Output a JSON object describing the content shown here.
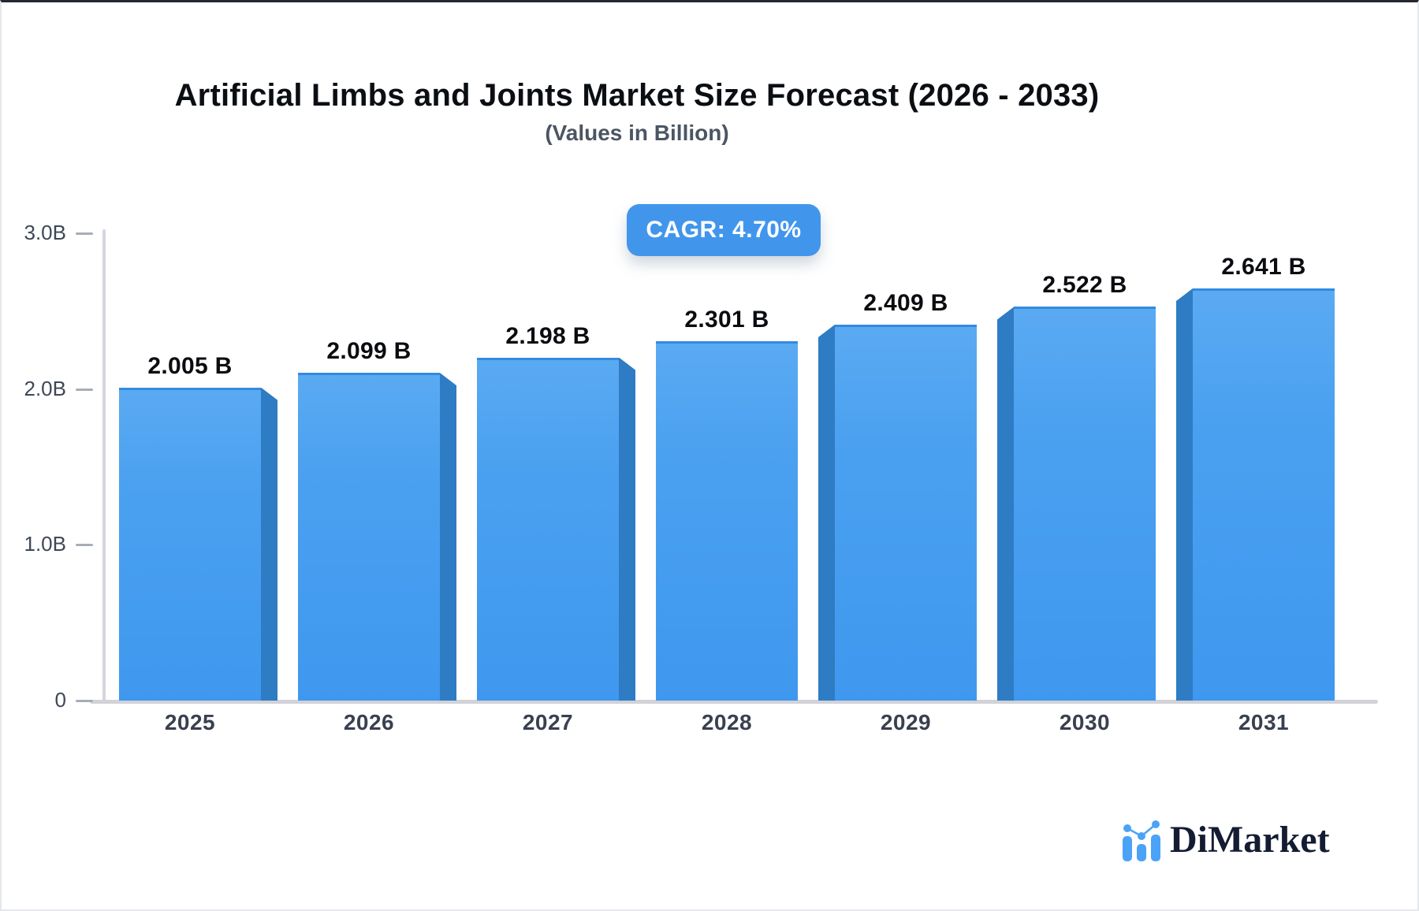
{
  "header": {
    "title": "Artificial Limbs and Joints Market Size Forecast (2026 - 2033)",
    "subtitle": "(Values in Billion)"
  },
  "badge": {
    "label": "CAGR: 4.70%",
    "background": "#4196ec",
    "text_color": "#ffffff"
  },
  "chart_data": {
    "type": "bar",
    "title": "Artificial Limbs and Joints Market Size Forecast (2026 - 2033)",
    "subtitle": "(Values in Billion)",
    "cagr": "CAGR: 4.70%",
    "categories": [
      "2025",
      "2026",
      "2027",
      "2028",
      "2029",
      "2030",
      "2031"
    ],
    "values": [
      2.005,
      2.099,
      2.198,
      2.301,
      2.409,
      2.522,
      2.641
    ],
    "value_labels": [
      "2.005 B",
      "2.099 B",
      "2.198 B",
      "2.301 B",
      "2.409 B",
      "2.522 B",
      "2.641 B"
    ],
    "unit": "Billion",
    "xlabel": "",
    "ylabel": "",
    "ylim": [
      0,
      3.0
    ],
    "yticks": [
      {
        "label": "3.0B",
        "value": 3.0
      },
      {
        "label": "2.0B",
        "value": 2.0
      },
      {
        "label": "1.0B",
        "value": 1.0
      },
      {
        "label": "0",
        "value": 0
      }
    ],
    "grid": false,
    "legend": false,
    "bar_color_top": "#5aaaf2",
    "bar_color_bottom": "#3f98ef",
    "bar_edge_color": "#338ae2",
    "bar_side_color": "#2e7cc3",
    "axis_color": "#d3d7dd",
    "tick_label_color": "#3e4755",
    "value_label_color": "#0a0c10"
  },
  "logo": {
    "text": "DiMarket",
    "icon": "bar-chart-logo-icon",
    "text_color": "#141c33",
    "icon_color": "#4aa3f7"
  }
}
